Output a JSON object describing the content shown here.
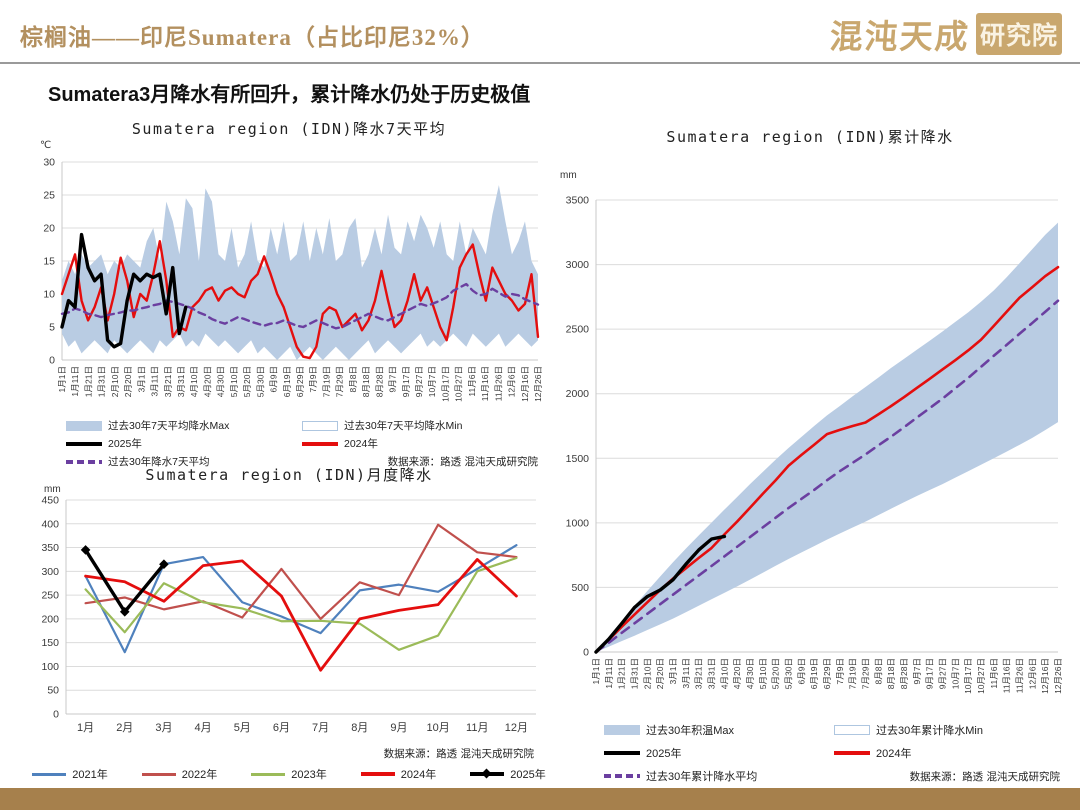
{
  "header": {
    "title": "棕榈油——印尼Sumatera（占比印尼32%）",
    "logo_text": "混沌天成",
    "logo_badge": "研究院"
  },
  "subtitle": "Sumatera3月降水有所回升，累计降水仍处于历史极值",
  "colors": {
    "accent_tan": "#b3905f",
    "logo_tan": "#c9a76e",
    "footer_brown": "#a6804c",
    "band_fill": "#b9cce3",
    "line_2025": "#000000",
    "line_2024": "#e40e0e",
    "avg_purple": "#6b3fa0",
    "line_2021": "#4f81bd",
    "line_2022": "#c0504d",
    "line_2023": "#9bbb59",
    "grid": "#dcdcdc"
  },
  "chart_data": [
    {
      "type": "area",
      "id": "daily",
      "title": "Sumatera region (IDN)降水7天平均",
      "unit": "℃",
      "ylim": [
        0,
        30
      ],
      "yticks": [
        0,
        5,
        10,
        15,
        20,
        25,
        30
      ],
      "xticks": [
        "1月1日",
        "1月11日",
        "1月21日",
        "1月31日",
        "2月10日",
        "2月20日",
        "3月1日",
        "3月11日",
        "3月21日",
        "3月31日",
        "4月10日",
        "4月20日",
        "4月30日",
        "5月10日",
        "5月20日",
        "5月30日",
        "6月9日",
        "6月19日",
        "6月29日",
        "7月9日",
        "7月19日",
        "7月29日",
        "8月8日",
        "8月18日",
        "8月28日",
        "9月7日",
        "9月17日",
        "9月27日",
        "10月7日",
        "10月17日",
        "10月27日",
        "11月6日",
        "11月16日",
        "11月26日",
        "12月6日",
        "12月16日",
        "12月26日"
      ],
      "band": {
        "name_max": "过去30年7天平均降水Max",
        "name_min": "过去30年7天平均降水Min",
        "max": [
          12,
          15,
          13,
          16,
          14,
          15,
          16,
          13,
          15,
          14,
          16,
          15,
          14,
          18,
          20,
          15,
          24,
          21,
          16,
          24.5,
          23,
          15,
          26,
          24,
          16,
          15,
          20,
          14,
          16,
          21,
          15,
          14,
          20,
          16,
          21,
          15,
          16,
          21,
          15,
          20,
          16,
          21.5,
          15,
          16,
          20,
          21.5,
          14,
          16,
          20,
          16,
          22,
          17,
          16,
          21,
          18,
          22,
          20,
          17,
          21,
          16,
          15,
          21,
          16,
          20,
          18,
          16,
          22,
          26.5,
          21,
          16,
          18,
          21,
          15,
          13
        ],
        "min": [
          4,
          2,
          3,
          1,
          2,
          3,
          2,
          1,
          3,
          2,
          1,
          2,
          3,
          2,
          1,
          3,
          2,
          3,
          4,
          2,
          3,
          2,
          4,
          3,
          2,
          3,
          2,
          1,
          2,
          3,
          1,
          2,
          1,
          0,
          1,
          2,
          0,
          1,
          2,
          1,
          0,
          1,
          2,
          1,
          0,
          1,
          2,
          3,
          1,
          2,
          3,
          2,
          1,
          2,
          3,
          4,
          2,
          3,
          2,
          3,
          4,
          3,
          2,
          4,
          3,
          2,
          3,
          4,
          2,
          3,
          4,
          3,
          2,
          3
        ]
      },
      "series": [
        {
          "name": "2024年",
          "color": "#e40e0e",
          "width": 2.4,
          "values": [
            10,
            13,
            16,
            9,
            6,
            8,
            11,
            6,
            10,
            15.5,
            12,
            6.5,
            10,
            9,
            13,
            18,
            12,
            3.5,
            5,
            4.5,
            8,
            9,
            10.5,
            11,
            9,
            10.5,
            11,
            10,
            9.5,
            12,
            13,
            15.7,
            13,
            10,
            8,
            5,
            2,
            0.5,
            0.3,
            2,
            7,
            8,
            7.5,
            5,
            6,
            7,
            4.5,
            6,
            9,
            13.5,
            9,
            5,
            6,
            9,
            13,
            9,
            11,
            8,
            5,
            3,
            8,
            14,
            16,
            17.5,
            13,
            9,
            14,
            12,
            10,
            9,
            7.5,
            8.5,
            13,
            3.5
          ]
        },
        {
          "name": "过去30年降水7天平均",
          "color": "#6b3fa0",
          "width": 2.4,
          "dash": "7,5",
          "values": [
            7,
            7.2,
            7.8,
            7.5,
            7,
            6.8,
            6.5,
            6.8,
            7,
            7.2,
            7.5,
            7.5,
            7.8,
            8,
            8.3,
            8.5,
            9,
            8.8,
            8.5,
            8.2,
            7.8,
            7.2,
            6.8,
            6.2,
            5.8,
            5.5,
            6,
            6.5,
            6.2,
            5.8,
            5.5,
            5.2,
            5.5,
            5.6,
            6,
            5.6,
            5.2,
            5,
            5.5,
            6,
            5.6,
            5.2,
            4.8,
            5,
            5.5,
            6,
            6.5,
            7,
            6.6,
            6.2,
            6,
            6.5,
            7,
            7.5,
            8,
            8.5,
            8.2,
            8.6,
            9,
            9.5,
            10.5,
            11,
            11.5,
            10.5,
            9.8,
            10,
            10.8,
            10.2,
            9.6,
            10,
            9.8,
            9.2,
            8.8,
            8.4
          ]
        },
        {
          "name": "2025年",
          "color": "#000000",
          "width": 3.4,
          "span": 0.26,
          "values": [
            5,
            9,
            8,
            19,
            14,
            12,
            13,
            3,
            2,
            2.5,
            9,
            13,
            12,
            13,
            12.5,
            13,
            7,
            14,
            4,
            8
          ]
        }
      ],
      "legend": [
        {
          "label": "过去30年7天平均降水Max"
        },
        {
          "label": "过去30年7天平均降水Min"
        },
        {
          "label": "2025年"
        },
        {
          "label": "2024年"
        },
        {
          "label": "过去30年降水7天平均"
        }
      ],
      "source": "数据来源：路透 混沌天成研究院"
    },
    {
      "type": "line",
      "id": "monthly",
      "title": "Sumatera region (IDN)月度降水",
      "unit": "mm",
      "ylim": [
        0,
        450
      ],
      "yticks": [
        0,
        50,
        100,
        150,
        200,
        250,
        300,
        350,
        400,
        450
      ],
      "categories": [
        "1月",
        "2月",
        "3月",
        "4月",
        "5月",
        "6月",
        "7月",
        "8月",
        "9月",
        "10月",
        "11月",
        "12月"
      ],
      "series": [
        {
          "name": "2021年",
          "color": "#4f81bd",
          "width": 2.2,
          "values": [
            290,
            130,
            315,
            330,
            235,
            205,
            170,
            260,
            272,
            257,
            305,
            355
          ]
        },
        {
          "name": "2022年",
          "color": "#c0504d",
          "width": 2.2,
          "values": [
            233,
            245,
            220,
            237,
            203,
            305,
            200,
            277,
            250,
            398,
            340,
            330
          ]
        },
        {
          "name": "2023年",
          "color": "#9bbb59",
          "width": 2.2,
          "values": [
            262,
            172,
            275,
            235,
            222,
            195,
            196,
            190,
            135,
            165,
            300,
            328
          ]
        },
        {
          "name": "2024年",
          "color": "#e40e0e",
          "width": 2.8,
          "values": [
            290,
            278,
            237,
            312,
            322,
            248,
            92,
            200,
            218,
            230,
            325,
            248
          ]
        },
        {
          "name": "2025年",
          "color": "#000000",
          "width": 3.4,
          "marker": true,
          "values": [
            345,
            215,
            315
          ]
        }
      ],
      "legend": [
        {
          "label": "2021年"
        },
        {
          "label": "2022年"
        },
        {
          "label": "2023年"
        },
        {
          "label": "2024年"
        },
        {
          "label": "2025年"
        }
      ],
      "source": "数据来源：路透  混沌天成研究院"
    },
    {
      "type": "area",
      "id": "cumulative",
      "title": "Sumatera region (IDN)累计降水",
      "unit": "mm",
      "ylim": [
        0,
        3500
      ],
      "yticks": [
        0,
        500,
        1000,
        1500,
        2000,
        2500,
        3000,
        3500
      ],
      "xticks": [
        "1月1日",
        "1月11日",
        "1月21日",
        "1月31日",
        "2月10日",
        "2月20日",
        "3月1日",
        "3月11日",
        "3月21日",
        "3月31日",
        "4月10日",
        "4月20日",
        "4月30日",
        "5月10日",
        "5月20日",
        "5月30日",
        "6月9日",
        "6月19日",
        "6月29日",
        "7月9日",
        "7月19日",
        "7月29日",
        "8月8日",
        "8月18日",
        "8月28日",
        "9月7日",
        "9月17日",
        "9月27日",
        "10月7日",
        "10月17日",
        "10月27日",
        "11月6日",
        "11月16日",
        "11月26日",
        "12月6日",
        "12月16日",
        "12月26日"
      ],
      "band": {
        "name_max": "过去30年积温Max",
        "name_min": "过去30年累计降水Min",
        "max": [
          0,
          120,
          240,
          358,
          472,
          585,
          695,
          800,
          902,
          1002,
          1102,
          1200,
          1300,
          1395,
          1490,
          1580,
          1665,
          1750,
          1832,
          1905,
          1980,
          2052,
          2125,
          2200,
          2270,
          2340,
          2410,
          2482,
          2556,
          2630,
          2712,
          2800,
          2902,
          3010,
          3120,
          3230,
          3325
        ],
        "min": [
          0,
          42,
          84,
          126,
          170,
          214,
          258,
          308,
          358,
          408,
          458,
          508,
          560,
          614,
          668,
          720,
          770,
          820,
          870,
          918,
          964,
          1010,
          1060,
          1110,
          1160,
          1208,
          1254,
          1300,
          1350,
          1400,
          1450,
          1500,
          1552,
          1604,
          1658,
          1718,
          1780
        ]
      },
      "series": [
        {
          "name": "2024年",
          "color": "#e40e0e",
          "width": 2.6,
          "values": [
            0,
            95,
            195,
            290,
            385,
            480,
            568,
            648,
            728,
            805,
            910,
            1010,
            1117,
            1225,
            1330,
            1442,
            1525,
            1605,
            1687,
            1720,
            1750,
            1777,
            1840,
            1905,
            1973,
            2045,
            2115,
            2188,
            2260,
            2335,
            2418,
            2525,
            2635,
            2743,
            2825,
            2910,
            2980
          ]
        },
        {
          "name": "过去30年累计降水平均",
          "color": "#6b3fa0",
          "width": 2.6,
          "dash": "9,7",
          "values": [
            0,
            72,
            148,
            222,
            296,
            370,
            444,
            518,
            592,
            666,
            740,
            815,
            890,
            965,
            1040,
            1115,
            1185,
            1255,
            1330,
            1400,
            1465,
            1530,
            1600,
            1668,
            1740,
            1815,
            1888,
            1962,
            2042,
            2122,
            2208,
            2294,
            2378,
            2464,
            2548,
            2634,
            2720
          ]
        },
        {
          "name": "2025年",
          "color": "#000000",
          "width": 3.4,
          "span": 0.278,
          "values": [
            0,
            100,
            220,
            345,
            430,
            480,
            560,
            680,
            790,
            875,
            895
          ]
        }
      ],
      "legend": [
        {
          "label": "过去30年积温Max"
        },
        {
          "label": "过去30年累计降水Min"
        },
        {
          "label": "2025年"
        },
        {
          "label": "2024年"
        },
        {
          "label": "过去30年累计降水平均"
        }
      ],
      "source": "数据来源：路透 混沌天成研究院"
    }
  ]
}
